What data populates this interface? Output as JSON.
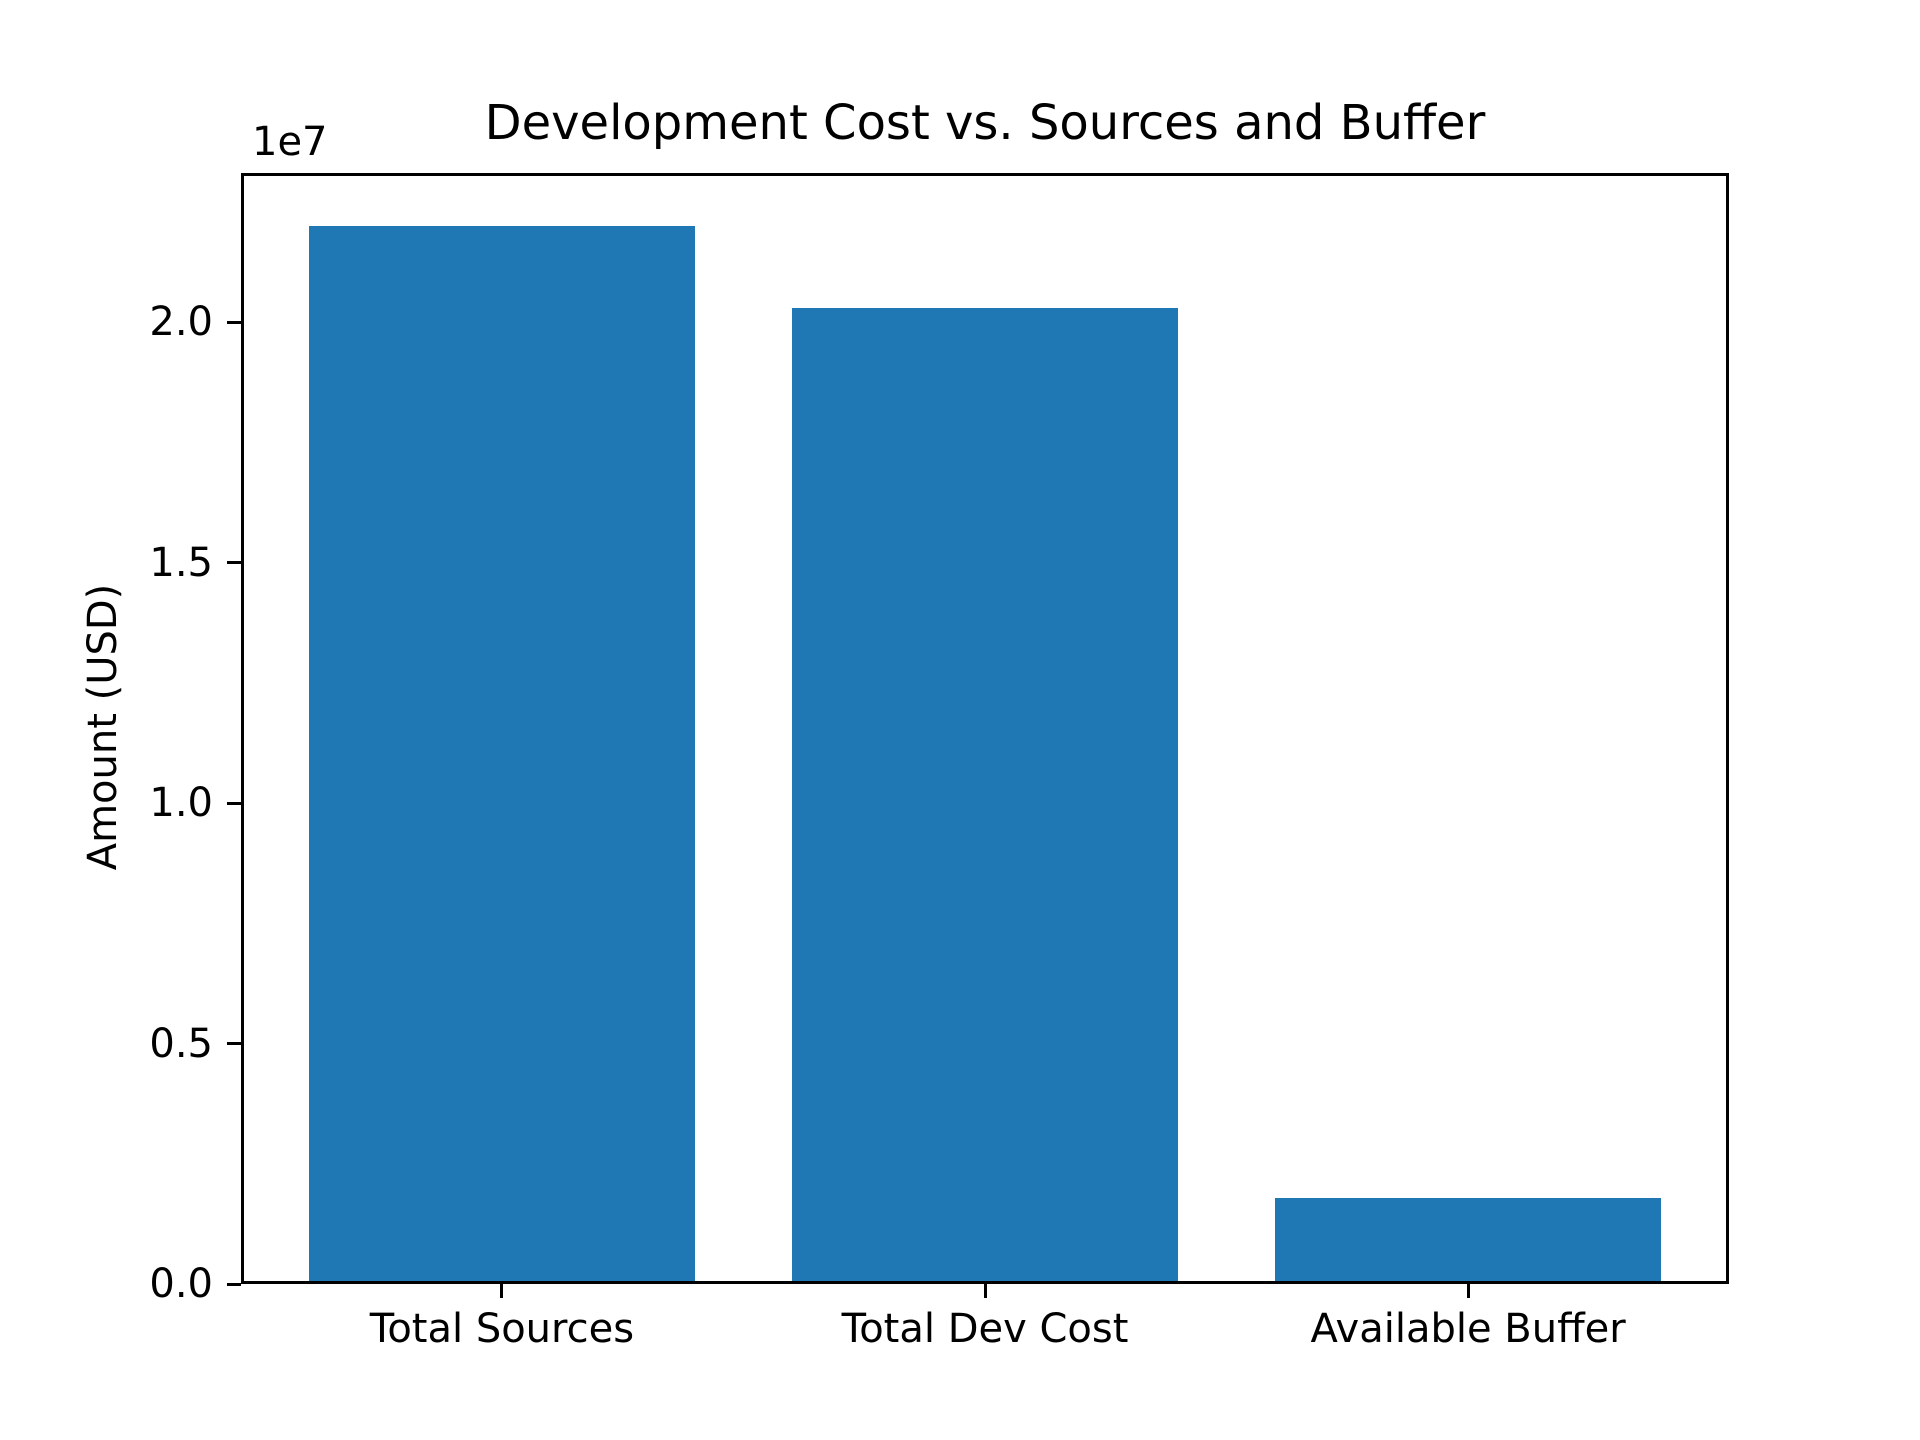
{
  "figure": {
    "background": "#ffffff",
    "text_color": "#000000",
    "axis_color": "#000000"
  },
  "chart_data": {
    "type": "bar",
    "title": "Development Cost vs. Sources and Buffer",
    "xlabel": "",
    "ylabel": "Amount (USD)",
    "y_offset_label": "1e7",
    "categories": [
      "Total Sources",
      "Total Dev Cost",
      "Available Buffer"
    ],
    "values": [
      22000000,
      20300000,
      1780000
    ],
    "bar_color": "#1f77b4",
    "bar_width": 0.8,
    "xlim": [
      -0.54,
      2.54
    ],
    "ylim": [
      0,
      23100000
    ],
    "yticks": [
      0,
      5000000,
      10000000,
      15000000,
      20000000
    ],
    "ytick_labels": [
      "0.0",
      "0.5",
      "1.0",
      "1.5",
      "2.0"
    ],
    "grid": false,
    "legend_position": "none"
  }
}
